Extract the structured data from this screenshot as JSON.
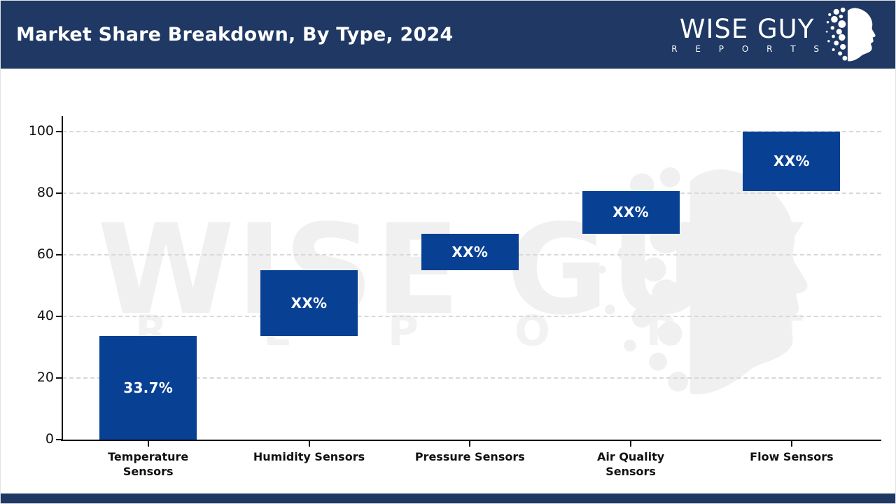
{
  "header": {
    "title": "Market Share Breakdown, By Type, 2024",
    "logo": {
      "name": "WISE GUY",
      "sub": "R E P O R T S"
    }
  },
  "watermark": {
    "name": "WISE GUY",
    "sub": "R E P O R T S"
  },
  "chart_data": {
    "type": "bar",
    "subtype": "waterfall",
    "title": "Market Share Breakdown, By Type, 2024",
    "categories": [
      "Temperature\nSensors",
      "Humidity Sensors",
      "Pressure Sensors",
      "Air Quality\nSensors",
      "Flow Sensors"
    ],
    "segments": [
      {
        "category": "Temperature Sensors",
        "start": 0,
        "end": 33.7,
        "label": "33.7%"
      },
      {
        "category": "Humidity Sensors",
        "start": 33.7,
        "end": 55.1,
        "label": "XX%"
      },
      {
        "category": "Pressure Sensors",
        "start": 55.1,
        "end": 66.8,
        "label": "XX%"
      },
      {
        "category": "Air Quality Sensors",
        "start": 66.8,
        "end": 80.7,
        "label": "XX%"
      },
      {
        "category": "Flow Sensors",
        "start": 80.7,
        "end": 100,
        "label": "XX%"
      }
    ],
    "y_ticks": [
      0,
      20,
      40,
      60,
      80,
      100
    ],
    "ylim": [
      0,
      105
    ],
    "xlabel": "",
    "ylabel": "",
    "legend": "none",
    "grid": "horizontal-dashed",
    "colors": {
      "bar": "#084094",
      "header_bg": "#1F3864",
      "footer_bg": "#1F3864",
      "grid": "#d8d8d8",
      "axis": "#111111",
      "bar_label": "#ffffff",
      "watermark": "#f0f0f0"
    }
  }
}
